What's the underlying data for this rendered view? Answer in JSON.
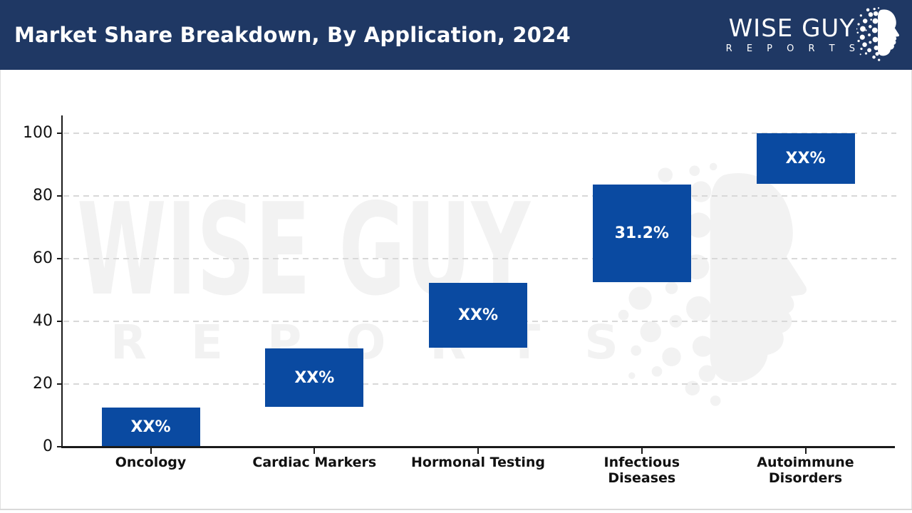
{
  "header": {
    "title": "Market Share Breakdown, By Application, 2024",
    "bg_color": "#1f3864",
    "brand": {
      "line1": "WISE GUY",
      "line2": "R E P O R T S"
    }
  },
  "watermark": {
    "line1": "WISE GUY",
    "line2": "REPORTS"
  },
  "chart_data": {
    "type": "bar",
    "subtype": "floating-waterfall",
    "title": "Market Share Breakdown, By Application, 2024",
    "categories": [
      "Oncology",
      "Cardiac Markers",
      "Hormonal Testing",
      "Infectious Diseases",
      "Autoimmune Disorders"
    ],
    "category_lines": [
      [
        "Oncology"
      ],
      [
        "Cardiac Markers"
      ],
      [
        "Hormonal Testing"
      ],
      [
        "Infectious",
        "Diseases"
      ],
      [
        "Autoimmune",
        "Disorders"
      ]
    ],
    "segments": [
      {
        "start": 0,
        "end": 12.4,
        "label": "XX%"
      },
      {
        "start": 12.6,
        "end": 31.2,
        "label": "XX%"
      },
      {
        "start": 31.5,
        "end": 52.2,
        "label": "XX%"
      },
      {
        "start": 52.4,
        "end": 83.6,
        "label": "31.2%"
      },
      {
        "start": 83.7,
        "end": 100,
        "label": "XX%"
      }
    ],
    "values": [
      12.4,
      18.6,
      20.7,
      31.2,
      16.3
    ],
    "xlabel": "",
    "ylabel": "",
    "ylim": [
      0,
      100
    ],
    "yticks": [
      0,
      20,
      40,
      60,
      80,
      100
    ],
    "grid": "horizontal-dashed",
    "legend": "none",
    "bar_color": "#0a4aa1",
    "bar_label_color": "#ffffff",
    "axis_color": "#1a1a1a",
    "grid_color": "#d8d8d8"
  }
}
